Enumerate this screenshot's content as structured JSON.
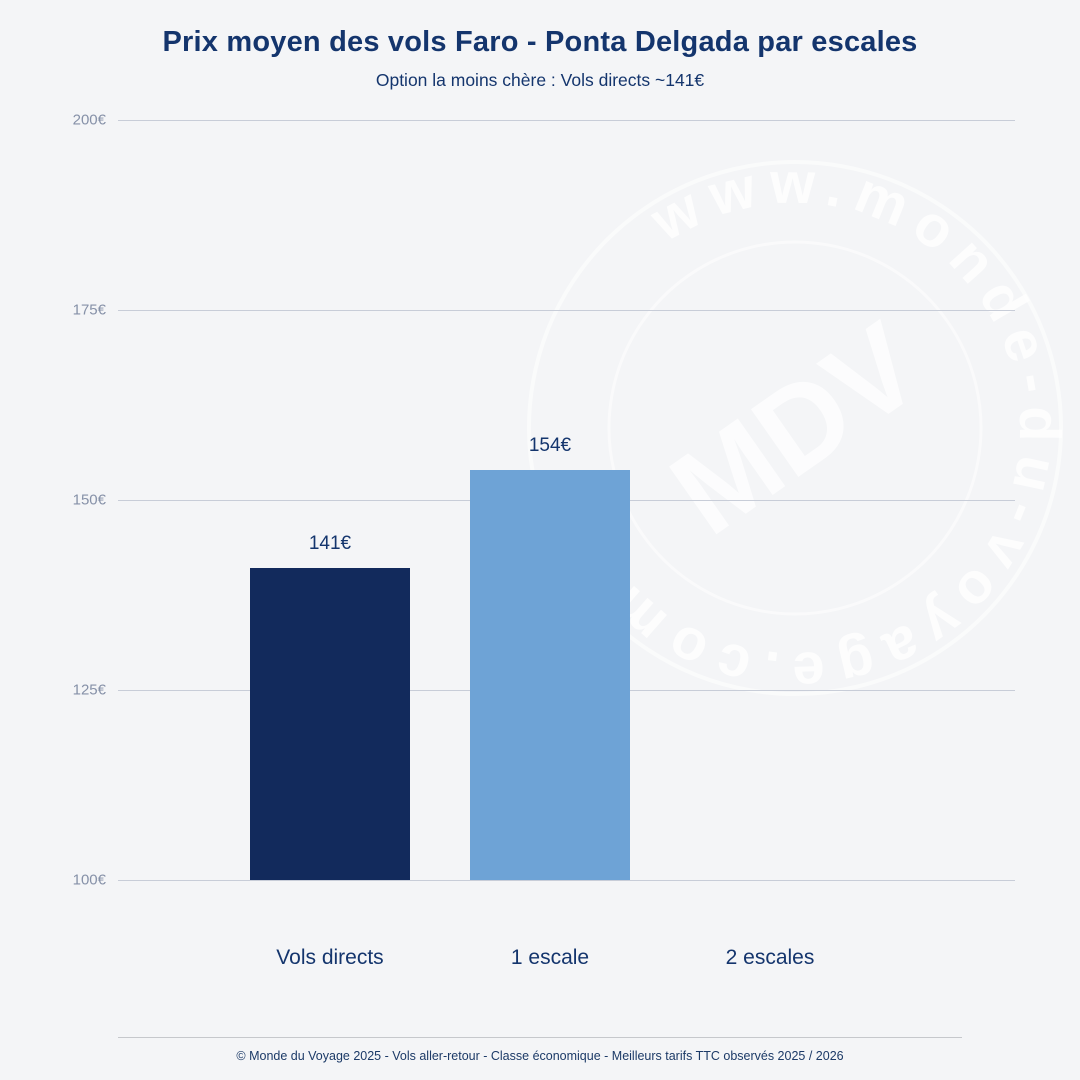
{
  "chart_data": {
    "type": "bar",
    "title": "Prix moyen des vols Faro - Ponta Delgada par escales",
    "subtitle": "Option la moins chère : Vols directs ~141€",
    "categories": [
      "Vols directs",
      "1 escale",
      "2 escales"
    ],
    "values": [
      141,
      154,
      null
    ],
    "data_labels": [
      "141€",
      "154€",
      ""
    ],
    "bar_colors": [
      "#122a5c",
      "#6ea3d6",
      "#6ea3d6"
    ],
    "ylim": [
      100,
      200
    ],
    "yticks": [
      100,
      125,
      150,
      175,
      200
    ],
    "ytick_labels": [
      "100€",
      "125€",
      "150€",
      "175€",
      "200€"
    ],
    "grid": true,
    "legend": "none",
    "xlabel": "",
    "ylabel": ""
  },
  "watermark": {
    "ring_text": "www.monde-du-voyage.com.",
    "center_text": "MDV"
  },
  "footer": {
    "text": "© Monde du Voyage 2025 - Vols aller-retour - Classe économique - Meilleurs tarifs TTC observés 2025 / 2026"
  },
  "colors": {
    "title": "#14356d",
    "bar_dark": "#122a5c",
    "bar_light": "#6ea3d6",
    "axis_label": "#8691a8",
    "gridline": "#c8cdd8",
    "background": "#f4f5f7"
  }
}
